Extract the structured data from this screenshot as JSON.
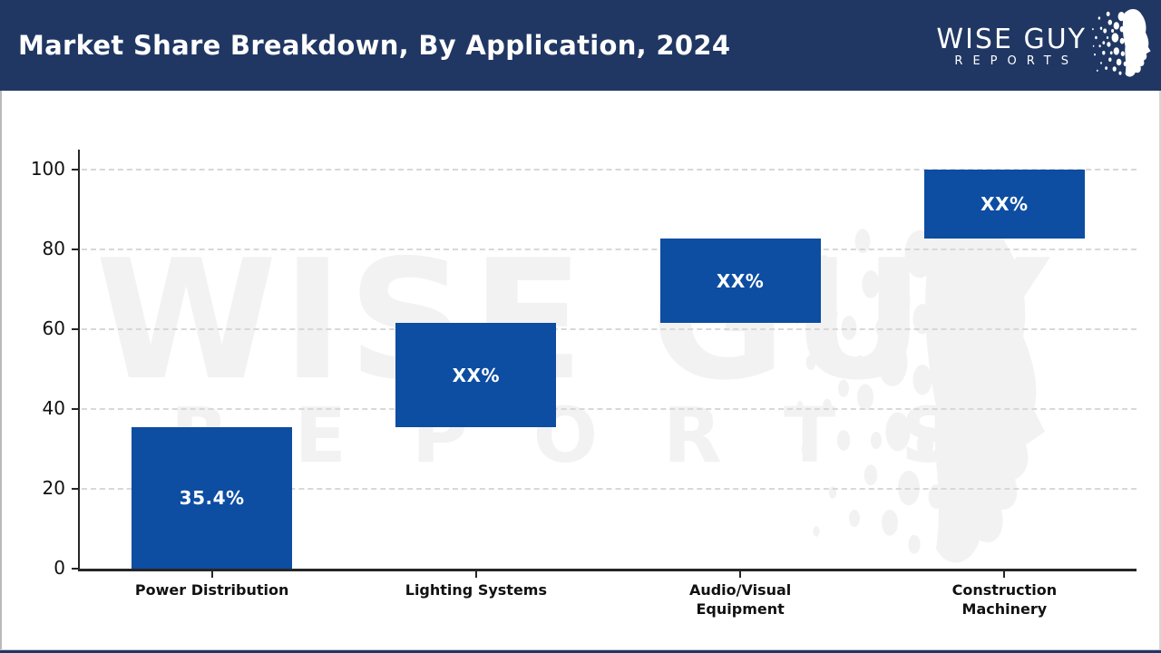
{
  "header": {
    "title": "Market Share Breakdown, By Application, 2024",
    "logo": {
      "line1": "WISE GUY",
      "line2": "REPORTS"
    }
  },
  "watermark": {
    "line1": "WISE GUY",
    "line2": "REPORTS"
  },
  "colors": {
    "header_bg": "#203763",
    "bar": "#0d4da2",
    "grid": "#d8d8d8",
    "axis": "#262626",
    "watermark": "#f2f2f2",
    "bar_label": "#ffffff",
    "tick_label": "#111111"
  },
  "chart_data": {
    "type": "bar",
    "subtype": "waterfall",
    "title": "Market Share Breakdown, By Application, 2024",
    "categories": [
      "Power Distribution",
      "Lighting Systems",
      "Audio/Visual\nEquipment",
      "Construction\nMachinery"
    ],
    "series": [
      {
        "name": "Market Share",
        "segments": [
          {
            "category": "Power Distribution",
            "start": 0,
            "end": 35.4,
            "label": "35.4%"
          },
          {
            "category": "Lighting Systems",
            "start": 35.4,
            "end": 61.6,
            "label": "XX%"
          },
          {
            "category": "Audio/Visual Equipment",
            "start": 61.6,
            "end": 82.7,
            "label": "XX%"
          },
          {
            "category": "Construction Machinery",
            "start": 82.7,
            "end": 100,
            "label": "XX%"
          }
        ]
      }
    ],
    "ylim": [
      0,
      100
    ],
    "yticks": [
      0,
      20,
      40,
      60,
      80,
      100
    ],
    "grid": "horizontal-dashed",
    "legend_position": "none"
  }
}
